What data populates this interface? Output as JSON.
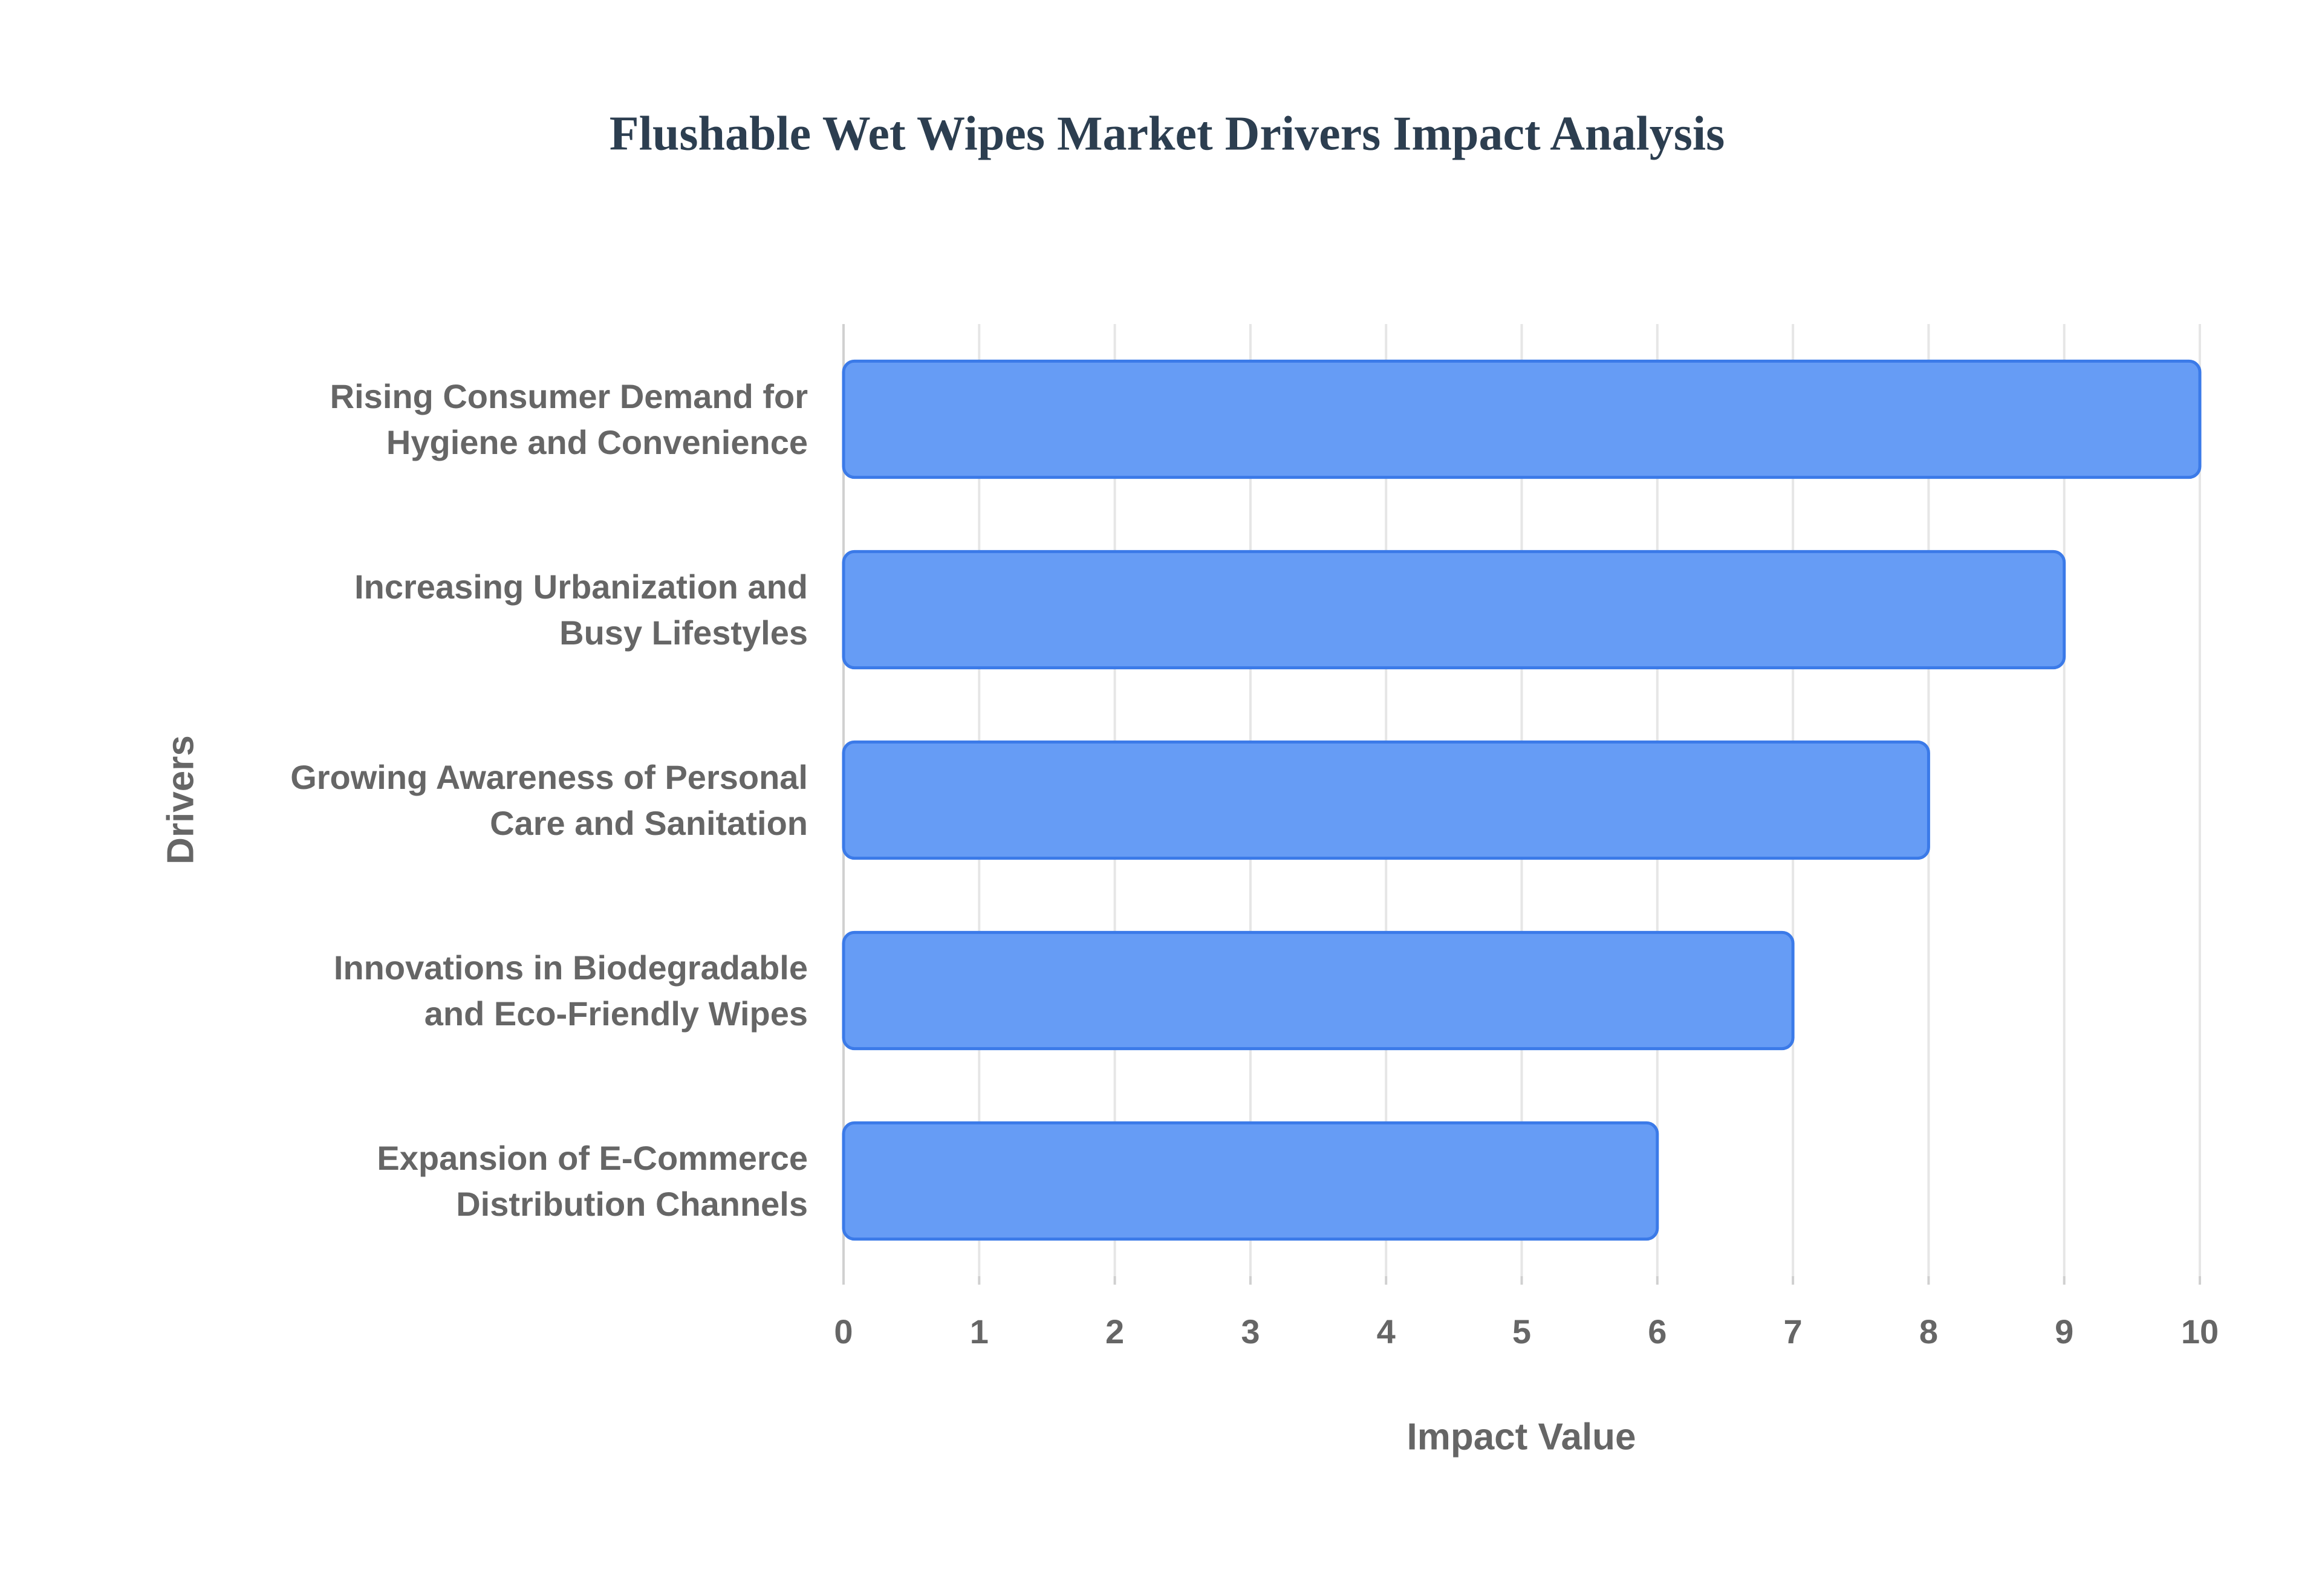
{
  "chart_data": {
    "type": "bar",
    "orientation": "horizontal",
    "title": "Flushable Wet Wipes Market Drivers Impact Analysis",
    "x_label": "Impact Value",
    "y_label": "Drivers",
    "categories": [
      "Rising Consumer Demand for\nHygiene and Convenience",
      "Increasing Urbanization and\nBusy Lifestyles",
      "Growing Awareness of Personal\nCare and Sanitation",
      "Innovations in Biodegradable\nand Eco-Friendly Wipes",
      "Expansion of E-Commerce\nDistribution Channels"
    ],
    "values": [
      10,
      9,
      8,
      7,
      6
    ],
    "color": "#6199f5",
    "xlim": [
      0,
      10
    ],
    "xticks": [
      0,
      1,
      2,
      3,
      4,
      5,
      6,
      7,
      8,
      9,
      10
    ],
    "grid": true
  }
}
